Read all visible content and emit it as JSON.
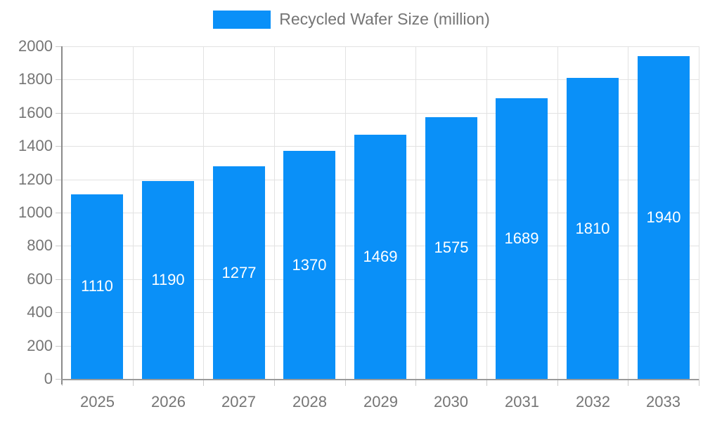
{
  "legend": {
    "label": "Recycled Wafer Size (million)"
  },
  "chart_data": {
    "type": "bar",
    "title": "",
    "xlabel": "",
    "ylabel": "",
    "categories": [
      "2025",
      "2026",
      "2027",
      "2028",
      "2029",
      "2030",
      "2031",
      "2032",
      "2033"
    ],
    "series": [
      {
        "name": "Recycled Wafer Size (million)",
        "values": [
          1110,
          1190,
          1277,
          1370,
          1469,
          1575,
          1689,
          1810,
          1940
        ]
      }
    ],
    "value_labels": [
      "1110",
      "1190",
      "1277",
      "1370",
      "1469",
      "1575",
      "1689",
      "1810",
      "1940"
    ],
    "ylim": [
      0,
      2000
    ],
    "ytick_step": 200,
    "yticks": [
      0,
      200,
      400,
      600,
      800,
      1000,
      1200,
      1400,
      1600,
      1800,
      2000
    ],
    "grid": true,
    "legend_position": "top-center",
    "bar_color": "#0a90f8",
    "value_label_color": "#ffffff",
    "axis_text_color": "#757575",
    "gridline_color": "#e2e2e2"
  }
}
